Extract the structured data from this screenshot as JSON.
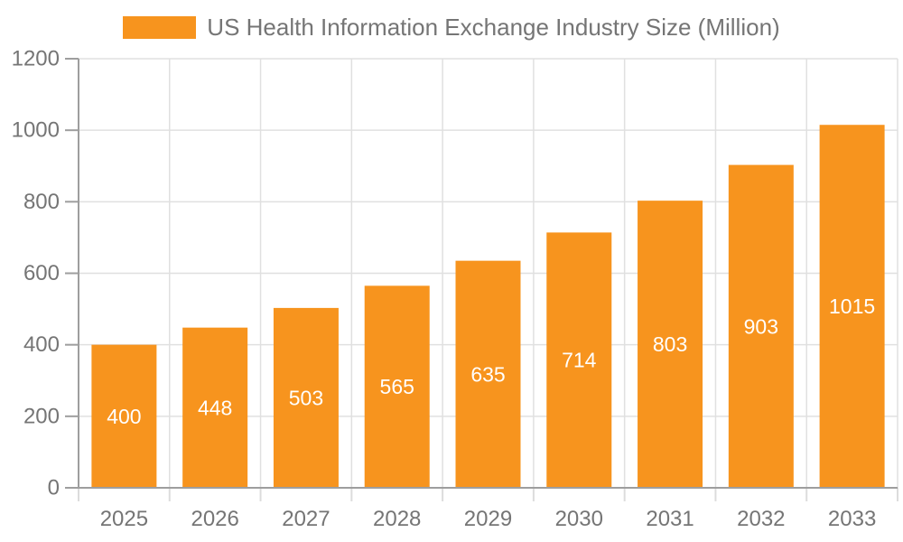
{
  "legend": {
    "label": "US Health Information Exchange Industry Size (Million)"
  },
  "chart_data": {
    "type": "bar",
    "title": "US Health Information Exchange Industry Size (Million)",
    "categories": [
      "2025",
      "2026",
      "2027",
      "2028",
      "2029",
      "2030",
      "2031",
      "2032",
      "2033"
    ],
    "values": [
      400,
      448,
      503,
      565,
      635,
      714,
      803,
      903,
      1015
    ],
    "xlabel": "",
    "ylabel": "",
    "ylim": [
      0,
      1200
    ],
    "ytick_step": 200,
    "yticks": [
      0,
      200,
      400,
      600,
      800,
      1000,
      1200
    ],
    "grid": true,
    "legend_position": "top-center",
    "bar_labels_inside": true,
    "colors": {
      "bar": "#F7941E",
      "grid": "#E0E0E0",
      "axis": "#9E9E9E",
      "x_tick": "#DCDCDC",
      "tick_label": "#757575",
      "legend_text": "#757575",
      "bar_label": "#FFFFFF",
      "background": "#FFFFFF"
    }
  }
}
